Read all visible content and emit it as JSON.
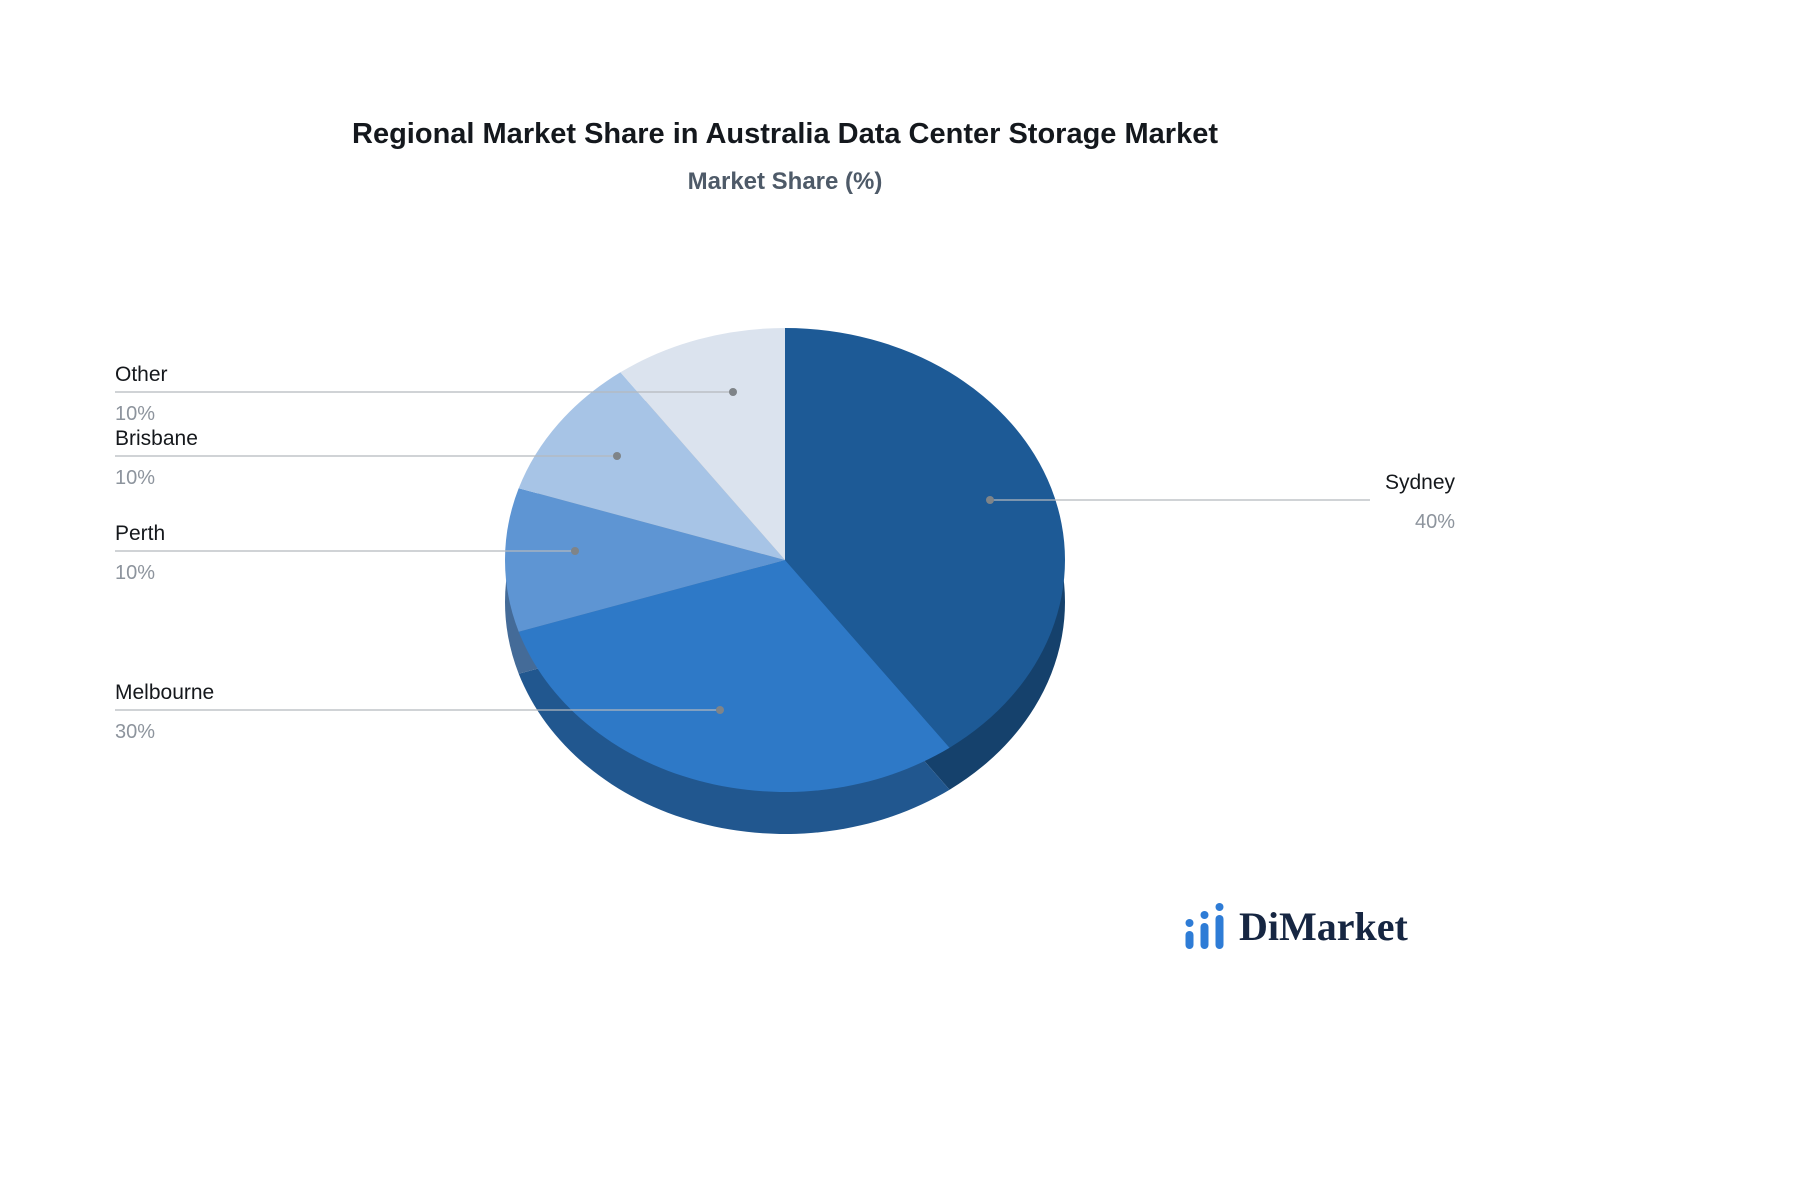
{
  "chart_data": {
    "type": "pie",
    "title": "Regional Market Share in Australia Data Center Storage Market",
    "subtitle": "Market Share (%)",
    "unit": "%",
    "labels": [
      "Sydney",
      "Melbourne",
      "Perth",
      "Brisbane",
      "Other"
    ],
    "values": [
      40,
      30,
      10,
      10,
      10
    ],
    "display_percents": [
      "40%",
      "30%",
      "10%",
      "10%",
      "10%"
    ],
    "colors": [
      "#1d5a96",
      "#2e79c7",
      "#5e95d3",
      "#a7c4e6",
      "#dbe3ee"
    ],
    "start_angle_deg": 0,
    "direction": "clockwise",
    "style": "3d-pie",
    "legend_position": "none",
    "label_name_color": "#15181c",
    "label_percent_color": "#8d949d",
    "leader_line_color": "#b5b9bd"
  },
  "logo": {
    "text": "DiMarket",
    "icon": "bar-chart-logo-icon",
    "icon_color": "#2e7cd6",
    "text_color": "#162642"
  }
}
